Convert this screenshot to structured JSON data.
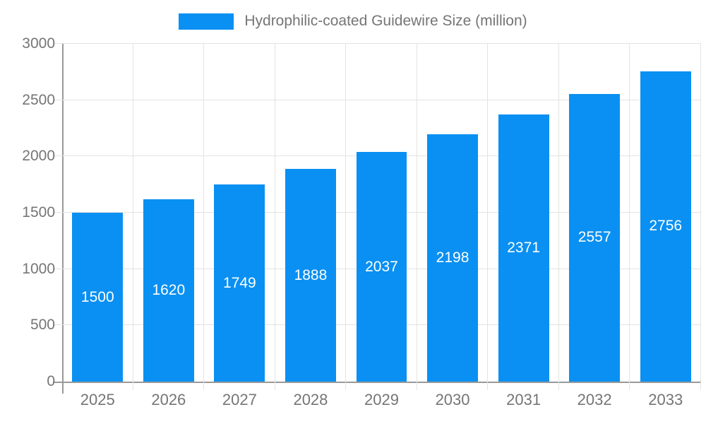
{
  "chart_data": {
    "type": "bar",
    "title": "Hydrophilic-coated Guidewire Size (million)",
    "categories": [
      "2025",
      "2026",
      "2027",
      "2028",
      "2029",
      "2030",
      "2031",
      "2032",
      "2033"
    ],
    "values": [
      1500,
      1620,
      1749,
      1888,
      2037,
      2198,
      2371,
      2557,
      2756
    ],
    "series": [
      {
        "name": "Hydrophilic-coated Guidewire Size (million)",
        "values": [
          1500,
          1620,
          1749,
          1888,
          2037,
          2198,
          2371,
          2557,
          2756
        ]
      }
    ],
    "xlabel": "",
    "ylabel": "",
    "ylim": [
      0,
      3000
    ],
    "yticks": [
      0,
      500,
      1000,
      1500,
      2000,
      2500,
      3000
    ],
    "grid": true,
    "legend_position": "top-center",
    "value_labels": "inside-center",
    "colors": {
      "bar": "#0a90f2",
      "bar_value_text": "#ffffff",
      "axis_text": "#757575",
      "axis_line": "#999999",
      "gridline": "#e3e3e3",
      "background": "#ffffff"
    }
  }
}
